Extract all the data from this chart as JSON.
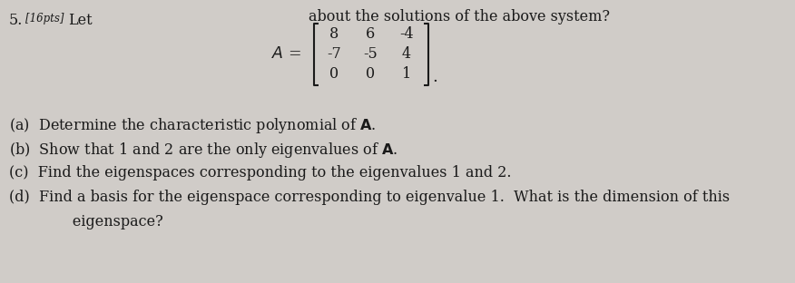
{
  "bg_color": "#d0ccc8",
  "text_color": "#1a1a1a",
  "figsize": [
    8.76,
    3.12
  ],
  "dpi": 100,
  "header_number": "5.",
  "header_pts": "[16pts]",
  "header_let": "Let",
  "header_right": "about the solutions of the above system?",
  "matrix_label": "$A$ =",
  "matrix_rows": [
    [
      "8",
      "6",
      "-4"
    ],
    [
      "-7",
      "-5",
      "4"
    ],
    [
      "0",
      "0",
      "1"
    ]
  ],
  "part_a": "(a)  Determine the characteristic polynomial of $\\mathbf{A}$.",
  "part_b": "(b)  Show that 1 and 2 are the only eigenvalues of $\\mathbf{A}$.",
  "part_c": "(c)  Find the eigenspaces corresponding to the eigenvalues 1 and 2.",
  "part_d1": "(d)  Find a basis for the eigenspace corresponding to eigenvalue 1.  What is the dimension of this",
  "part_d2": "       eigenspace?"
}
